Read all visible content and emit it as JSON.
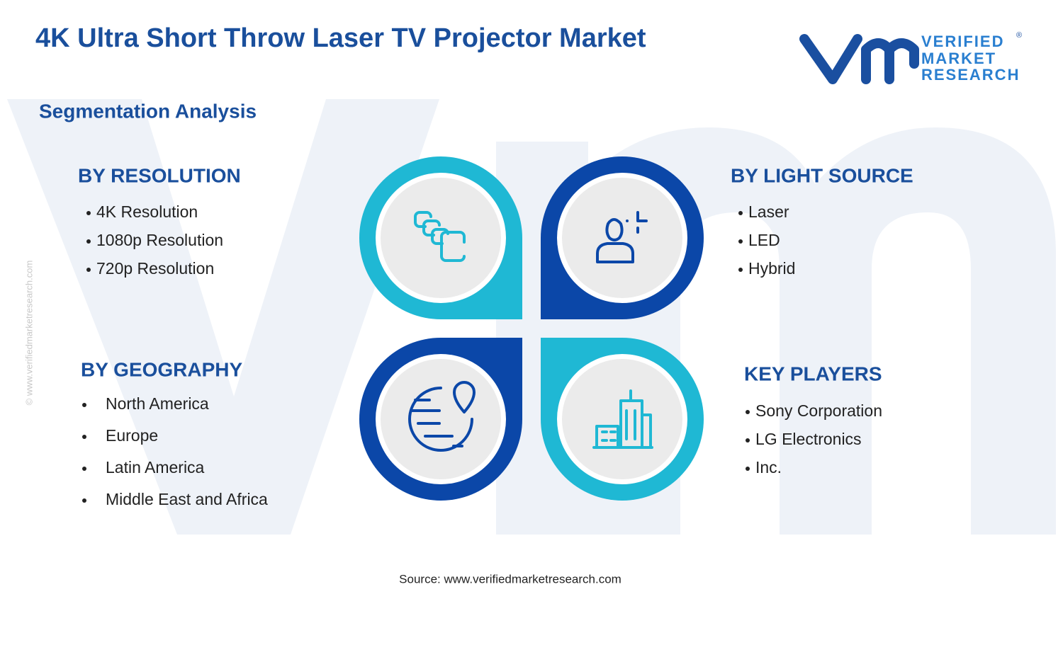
{
  "header": {
    "title": "4K Ultra Short Throw Laser TV Projector Market",
    "logo": {
      "lines": [
        "VERIFIED",
        "MARKET",
        "RESEARCH"
      ],
      "mark": "®"
    }
  },
  "subtitle": "Segmentation Analysis",
  "segments": [
    {
      "heading": "BY RESOLUTION",
      "items": [
        "4K Resolution",
        "1080p Resolution",
        "720p Resolution"
      ]
    },
    {
      "heading": "BY LIGHT SOURCE",
      "items": [
        "Laser",
        "LED",
        "Hybrid"
      ]
    },
    {
      "heading": "BY GEOGRAPHY",
      "items": [
        "North America",
        "Europe",
        "Latin America",
        "Middle East and Africa"
      ]
    },
    {
      "heading": "KEY PLAYERS",
      "items": [
        "Sony Corporation",
        "LG Electronics",
        "Inc."
      ]
    }
  ],
  "watermark": "© www.verifiedmarketresearch.com",
  "source": "Source: www.verifiedmarketresearch.com"
}
